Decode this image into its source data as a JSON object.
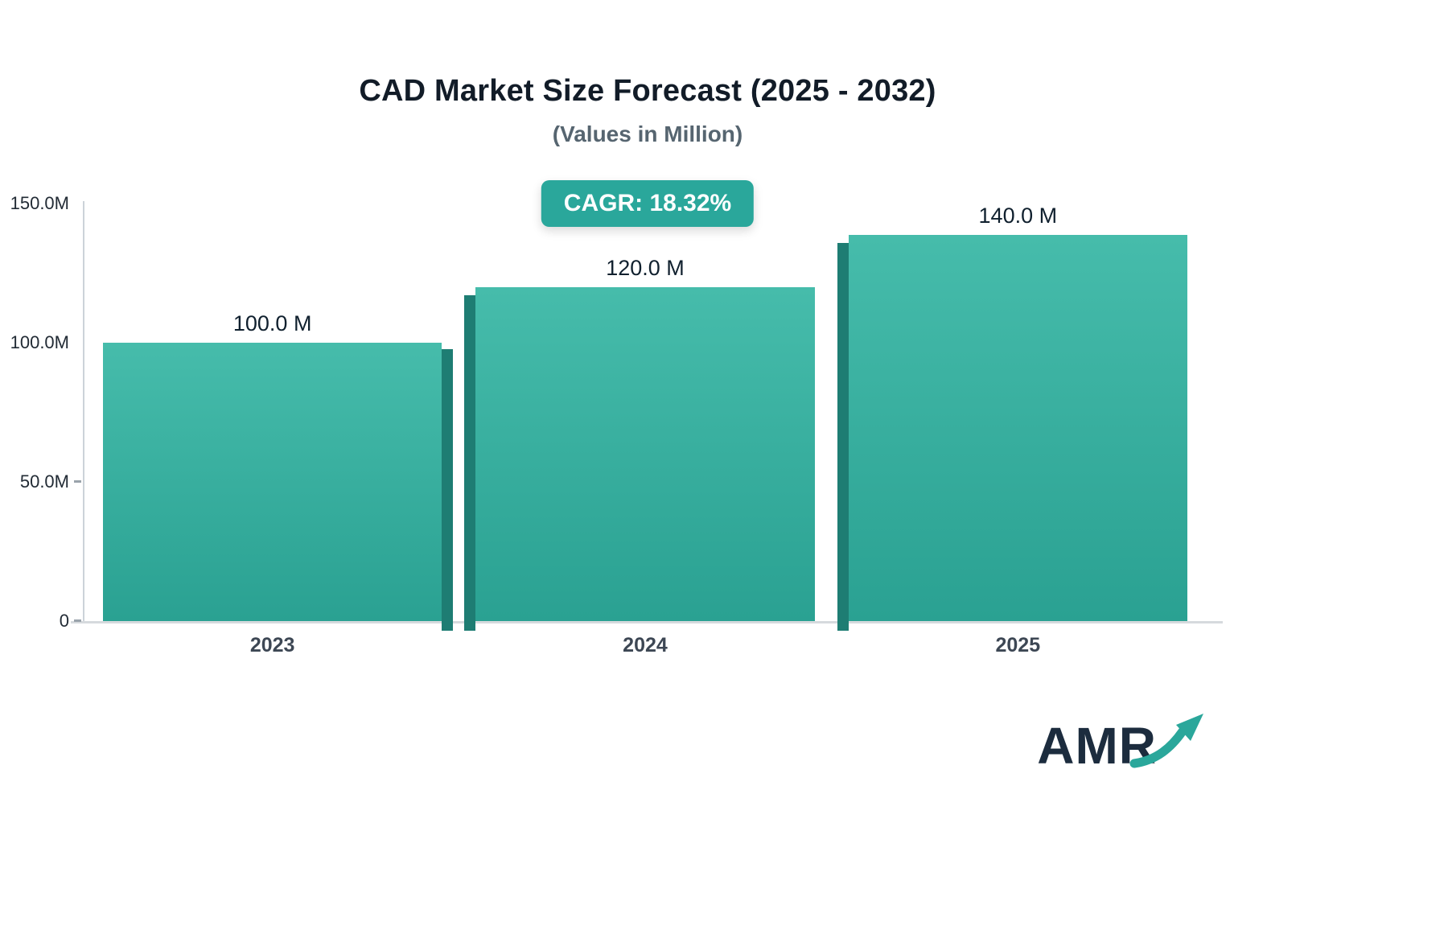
{
  "header": {
    "title": "CAD Market Size Forecast (2025 - 2032)",
    "subtitle": "(Values in Million)",
    "badge": "CAGR: 18.32%"
  },
  "chart_data": {
    "type": "bar",
    "title": "CAD Market Size Forecast (2025 - 2032)",
    "subtitle": "(Values in Million)",
    "annotation": "CAGR: 18.32%",
    "categories": [
      "2023",
      "2024",
      "2025"
    ],
    "values": [
      100.0,
      120.0,
      140.0
    ],
    "value_labels": [
      "100.0 M",
      "120.0 M",
      "140.0 M"
    ],
    "xlabel": "",
    "ylabel": "",
    "ylim": [
      0,
      150
    ],
    "yticks": [
      {
        "value": 0,
        "label": "0",
        "tick_mark": true
      },
      {
        "value": 50,
        "label": "50.0M",
        "tick_mark": true
      },
      {
        "value": 100,
        "label": "100.0M",
        "tick_mark": false
      },
      {
        "value": 150,
        "label": "150.0M",
        "tick_mark": false
      }
    ],
    "grid": false,
    "legend": false,
    "bar_color_top": "#46bcab",
    "bar_color_bottom": "#2aa192",
    "bar_edge_color": "#1e7d73",
    "badge_color": "#2aa79b"
  },
  "logo": {
    "text": "AMR",
    "color": "#1c2c3e",
    "arrow_color": "#2aa79b"
  }
}
